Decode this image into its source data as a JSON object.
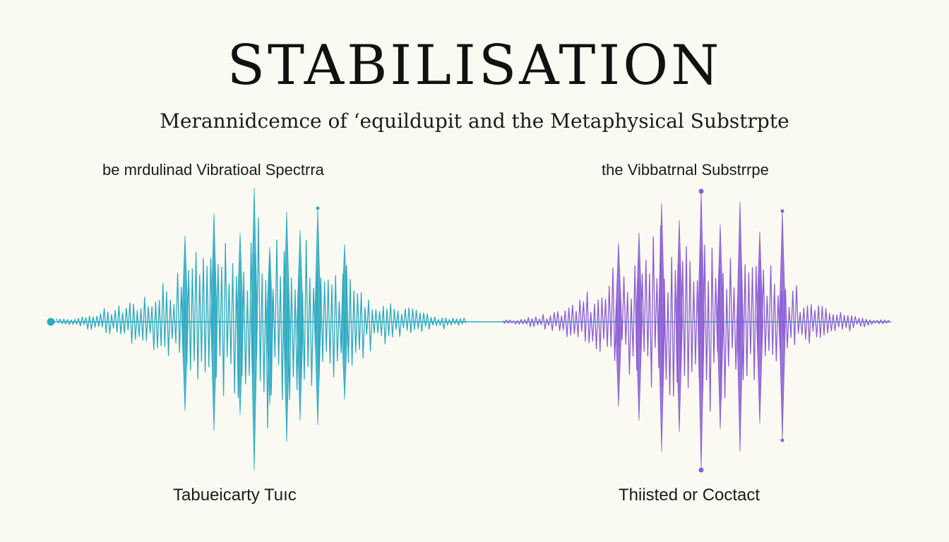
{
  "title": "STABILISATION",
  "subtitle": "Merannidcemce of ʻequildupit and the Metaphysical Substrpte",
  "left_panel": {
    "top_label": "be mrdulinad Vibratioal Spectrra",
    "bottom_label": "Tabueicarty Tuıc",
    "color": "#2ba9c3"
  },
  "right_panel": {
    "top_label": "the Vibbatrnal Substrrpe",
    "bottom_label": "Thiisted or Coctact",
    "color": "#8b5cd6"
  },
  "background": "#fbfaf2"
}
